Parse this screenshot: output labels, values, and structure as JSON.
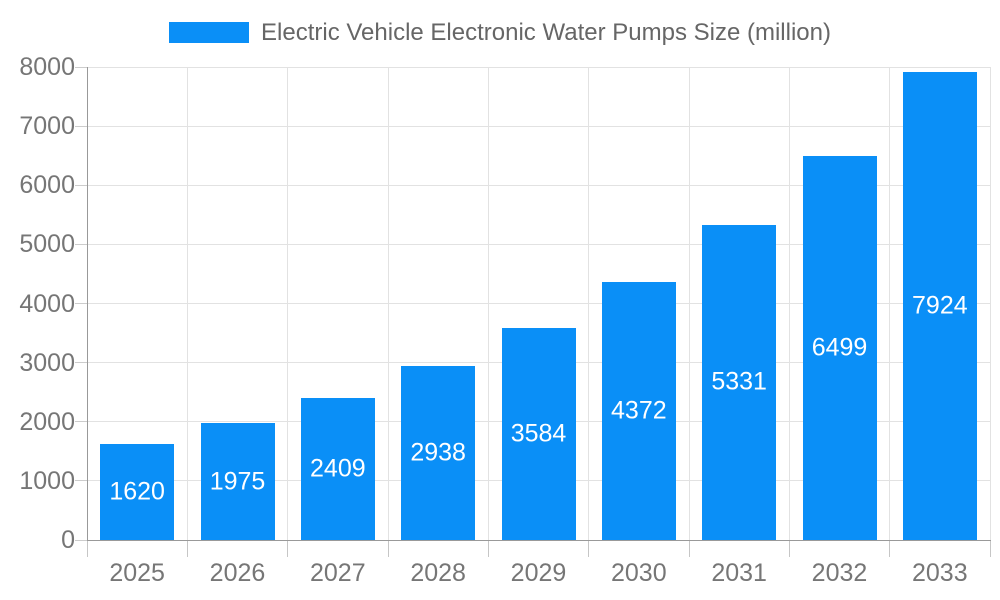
{
  "legend": {
    "label": "Electric Vehicle Electronic Water Pumps Size (million)",
    "swatch_color": "#0a8ff7"
  },
  "chart_data": {
    "type": "bar",
    "title": "Electric Vehicle Electronic Water Pumps Size (million)",
    "series_name": "Electric Vehicle Electronic Water Pumps Size (million)",
    "categories": [
      "2025",
      "2026",
      "2027",
      "2028",
      "2029",
      "2030",
      "2031",
      "2032",
      "2033"
    ],
    "values": [
      1620,
      1975,
      2409,
      2938,
      3584,
      4372,
      5331,
      6499,
      7924
    ],
    "xlabel": "",
    "ylabel": "",
    "ylim": [
      0,
      8000
    ],
    "yticks": [
      0,
      1000,
      2000,
      3000,
      4000,
      5000,
      6000,
      7000,
      8000
    ],
    "grid": true,
    "legend_position": "top",
    "bar_color": "#0a8ff7",
    "value_label_color": "#ffffff",
    "axis_text_color": "#767676",
    "grid_color": "#e2e2e2",
    "axis_line_color": "#999999"
  }
}
